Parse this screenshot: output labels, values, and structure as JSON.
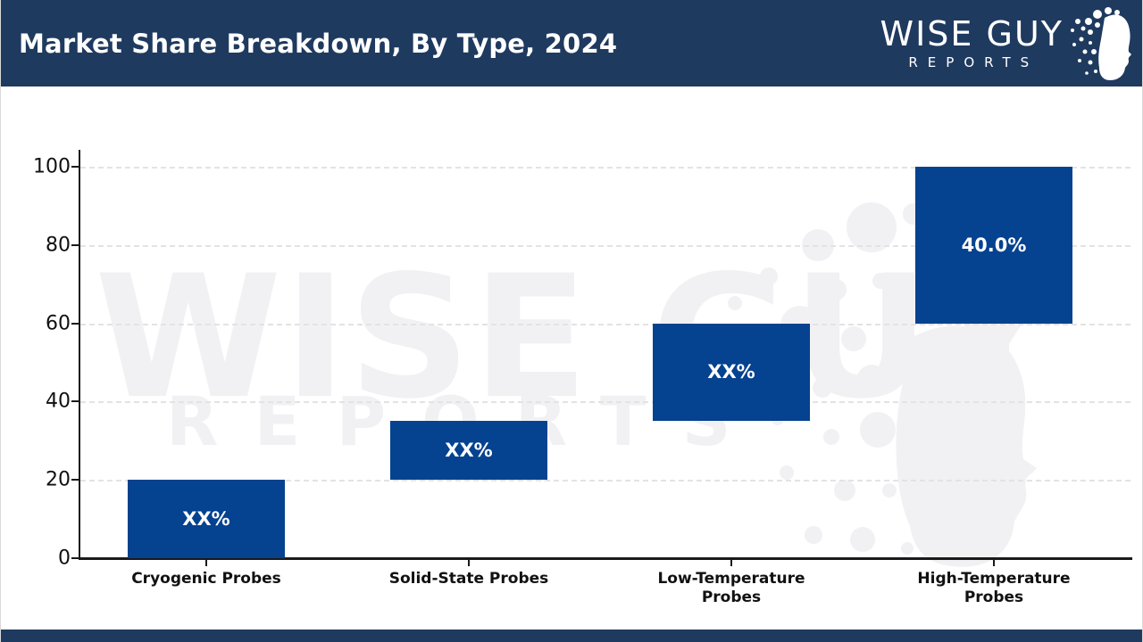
{
  "header": {
    "title": "Market Share Breakdown, By Type, 2024",
    "logo_line1": "WISE GUY",
    "logo_line2": "REPORTS",
    "bg_color": "#1f3a5f"
  },
  "watermark": {
    "line1": "WISE GUY",
    "line2": "REPORTS"
  },
  "chart_data": {
    "type": "bar",
    "subtype": "waterfall",
    "title": "Market Share Breakdown, By Type, 2024",
    "categories": [
      "Cryogenic Probes",
      "Solid-State Probes",
      "Low-Temperature Probes",
      "High-Temperature Probes"
    ],
    "series": [
      {
        "name": "Market Share",
        "segments": [
          {
            "category": "Cryogenic Probes",
            "start": 0,
            "end": 20,
            "value": 20,
            "label": "XX%"
          },
          {
            "category": "Solid-State Probes",
            "start": 20,
            "end": 35,
            "value": 15,
            "label": "XX%"
          },
          {
            "category": "Low-Temperature Probes",
            "start": 35,
            "end": 60,
            "value": 25,
            "label": "XX%"
          },
          {
            "category": "High-Temperature Probes",
            "start": 60,
            "end": 100,
            "value": 40,
            "label": "40.0%"
          }
        ]
      }
    ],
    "xlabel": "",
    "ylabel": "",
    "ylim": [
      0,
      100
    ],
    "yticks": [
      0,
      20,
      40,
      60,
      80,
      100
    ],
    "grid": "horizontal-dashed",
    "legend": "none",
    "bar_color": "#05428f",
    "bar_label_color": "#ffffff"
  }
}
